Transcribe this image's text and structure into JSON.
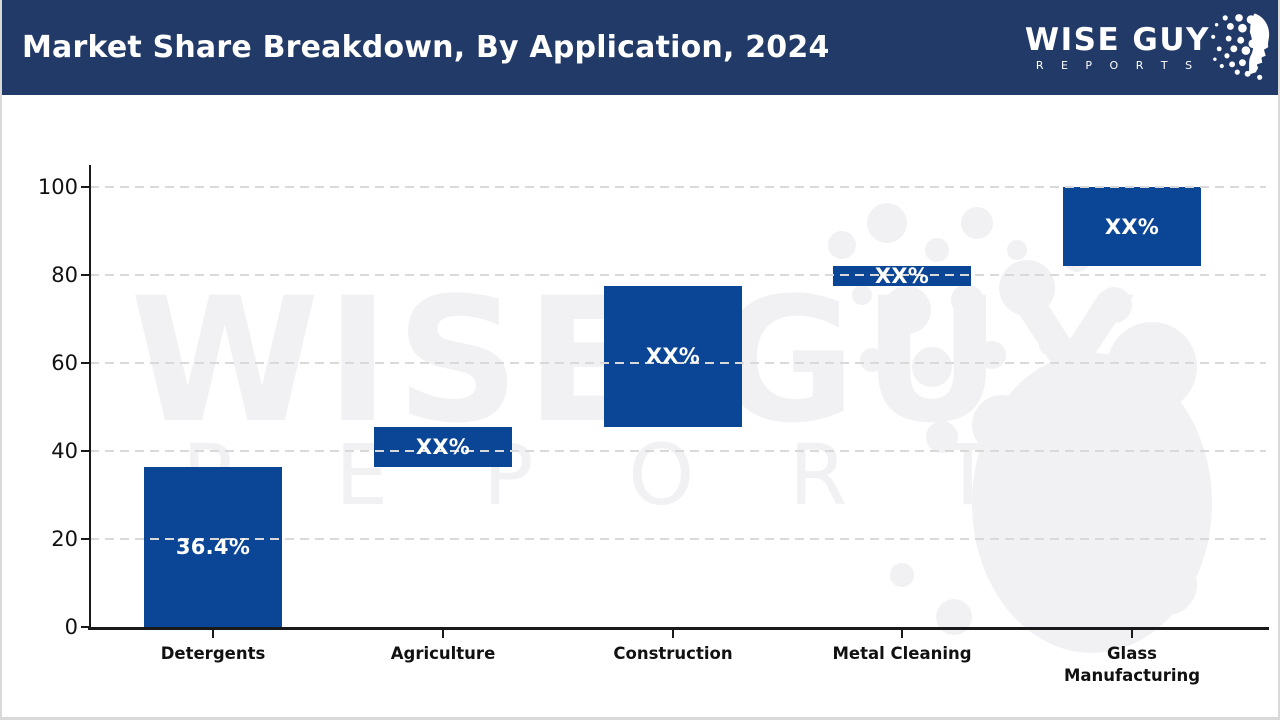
{
  "header": {
    "title": "Market Share Breakdown, By Application, 2024",
    "logo": {
      "line1": "WISE GUY",
      "line2": "R E P O R T S"
    }
  },
  "watermark": {
    "line1": "WISE GUY",
    "line2": "R E P O R T S"
  },
  "colors": {
    "header_bg": "#223A67",
    "bar": "#0B4596",
    "gridline": "#D9D9D9",
    "axis": "#1A1A1A",
    "bar_label_text": "#FFFFFF",
    "watermark": "#F1F1F4"
  },
  "chart_data": {
    "type": "bar",
    "subtype": "floating-waterfall",
    "title": "Market Share Breakdown, By Application, 2024",
    "categories": [
      "Detergents",
      "Agriculture",
      "Construction",
      "Metal Cleaning",
      "Glass Manufacturing"
    ],
    "bars": [
      {
        "category": "Detergents",
        "start": 0,
        "end": 36.4,
        "label": "36.4%"
      },
      {
        "category": "Agriculture",
        "start": 36.4,
        "end": 45.5,
        "label": "XX%"
      },
      {
        "category": "Construction",
        "start": 45.5,
        "end": 77.5,
        "label": "XX%"
      },
      {
        "category": "Metal Cleaning",
        "start": 77.5,
        "end": 82.0,
        "label": "XX%"
      },
      {
        "category": "Glass Manufacturing",
        "start": 82.0,
        "end": 100,
        "label": "XX%"
      }
    ],
    "xlabel": "",
    "ylabel": "",
    "ylim": [
      0,
      100
    ],
    "yticks": [
      0,
      20,
      40,
      60,
      80,
      100
    ],
    "grid": "horizontal-dashed-over-bars",
    "legend": null
  }
}
